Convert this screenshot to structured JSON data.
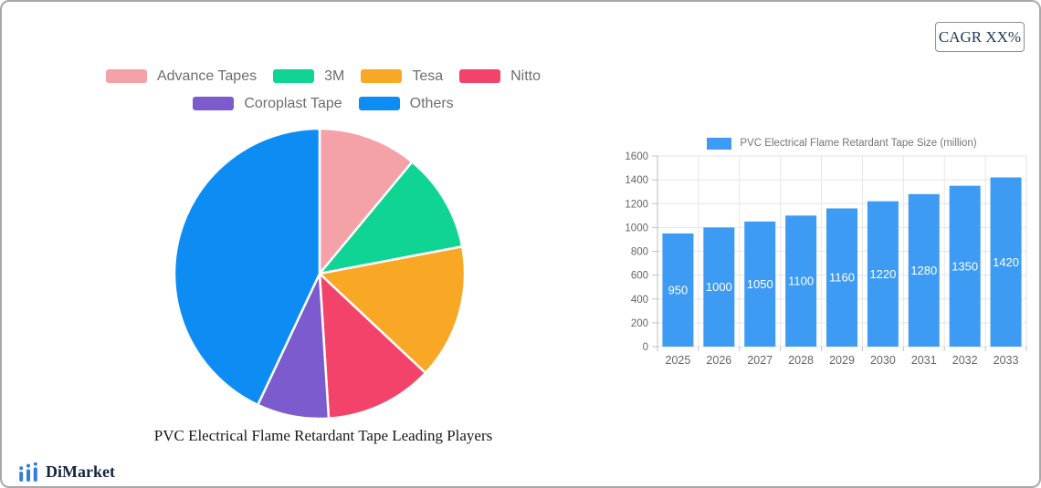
{
  "cagr_badge": {
    "label": "CAGR XX%"
  },
  "branding": {
    "name": "DiMarket"
  },
  "chart_data": [
    {
      "type": "pie",
      "title": "PVC Electrical Flame Retardant Tape Leading Players",
      "legend_position": "top",
      "legend_rows": [
        [
          0,
          1,
          2,
          3
        ],
        [
          4,
          5
        ]
      ],
      "start_angle_deg": 0,
      "direction": "clockwise",
      "slices": [
        {
          "label": "Advance Tapes",
          "share_pct": 11,
          "color": "#F4A2A8"
        },
        {
          "label": "3M",
          "share_pct": 11,
          "color": "#10D494"
        },
        {
          "label": "Tesa",
          "share_pct": 15,
          "color": "#F9A825"
        },
        {
          "label": "Nitto",
          "share_pct": 12,
          "color": "#F4436A"
        },
        {
          "label": "Coroplast Tape",
          "share_pct": 8,
          "color": "#7B5BCD"
        },
        {
          "label": "Others",
          "share_pct": 43,
          "color": "#0D8DF4"
        }
      ]
    },
    {
      "type": "bar",
      "legend": "PVC Electrical Flame Retardant Tape Size (million)",
      "legend_position": "top",
      "categories": [
        "2025",
        "2026",
        "2027",
        "2028",
        "2029",
        "2030",
        "2031",
        "2032",
        "2033"
      ],
      "values": [
        950,
        1000,
        1050,
        1100,
        1160,
        1220,
        1280,
        1350,
        1420
      ],
      "bar_color": "#3E9BF3",
      "value_label_color": "#FFFFFF",
      "ylim": [
        0,
        1600
      ],
      "ytick_step": 200,
      "grid": true
    }
  ]
}
